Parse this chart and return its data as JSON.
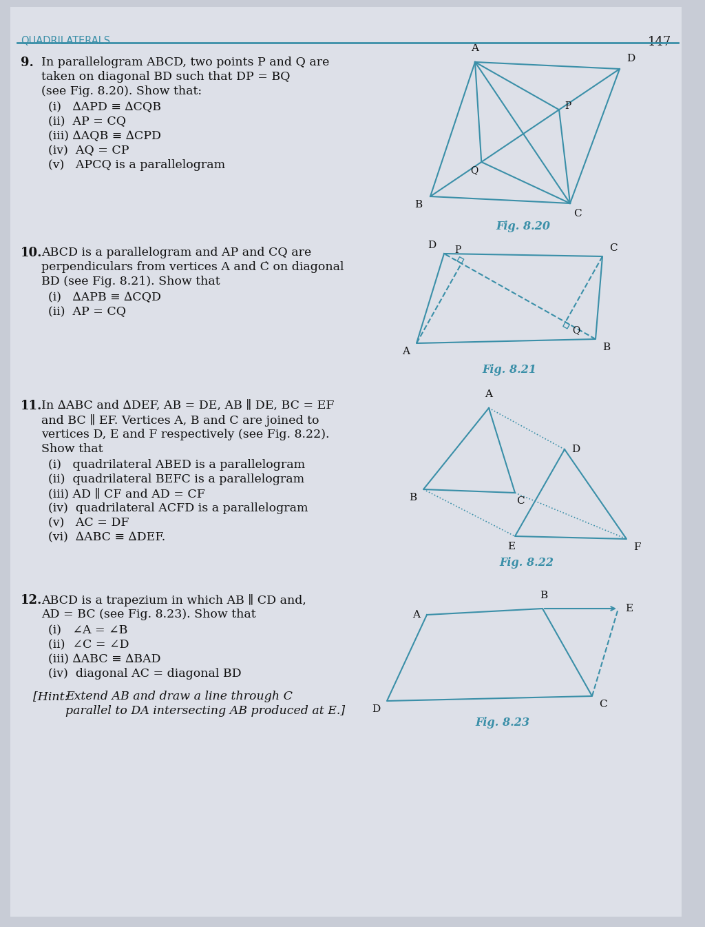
{
  "bg_color": "#c8ccd6",
  "page_bg": "#dde0e8",
  "text_color": "#111111",
  "blue_color": "#3a8fa8",
  "fig_label_color": "#3a8fa8",
  "header_text": "QUADRILATERALS",
  "page_number": "147",
  "q9_items": [
    "(i)   ∆APD ≡ ∆CQB",
    "(ii)  AP = CQ",
    "(iii) ∆AQB ≡ ∆CPD",
    "(iv)  AQ = CP",
    "(v)   APCQ is a parallelogram"
  ],
  "q10_items": [
    "(i)   ∆APB ≡ ∆CQD",
    "(ii)  AP = CQ"
  ],
  "q11_items": [
    "(i)   quadrilateral ABED is a parallelogram",
    "(ii)  quadrilateral BEFC is a parallelogram",
    "(iii) AD ∥ CF and AD = CF",
    "(iv)  quadrilateral ACFD is a parallelogram",
    "(v)   AC = DF",
    "(vi)  ∆ABC ≡ ∆DEF."
  ],
  "q12_items": [
    "(i)   ∠A = ∠B",
    "(ii)  ∠C = ∠D",
    "(iii) ∆ABC ≡ ∆BAD",
    "(iv)  diagonal AC = diagonal BD"
  ]
}
